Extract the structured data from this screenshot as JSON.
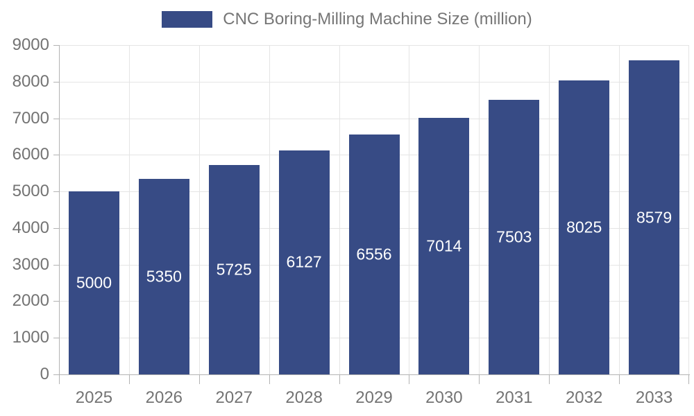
{
  "legend": {
    "label": "CNC Boring-Milling Machine Size (million)"
  },
  "colors": {
    "bar": "#374B85",
    "grid": "#e4e4e4",
    "axis": "#b3b3b3",
    "tick": "#b3b3b3",
    "tick_label": "#737373",
    "legend_text": "#767676",
    "value_label": "#ffffff",
    "background": "#ffffff"
  },
  "chart_data": {
    "type": "bar",
    "title": "CNC Boring-Milling Machine Size (million)",
    "categories": [
      "2025",
      "2026",
      "2027",
      "2028",
      "2029",
      "2030",
      "2031",
      "2032",
      "2033"
    ],
    "series": [
      {
        "name": "CNC Boring-Milling Machine Size (million)",
        "values": [
          5000,
          5350,
          5725,
          6127,
          6556,
          7014,
          7503,
          8025,
          8579
        ]
      }
    ],
    "xlabel": "",
    "ylabel": "",
    "ylim": [
      0,
      9000
    ],
    "ytick_step": 1000,
    "ytick_labels": [
      "0",
      "1000",
      "2000",
      "3000",
      "4000",
      "5000",
      "6000",
      "7000",
      "8000",
      "9000"
    ],
    "grid": true,
    "grid_vertical": true,
    "legend_position": "top-center",
    "value_labels": "inside-center"
  }
}
